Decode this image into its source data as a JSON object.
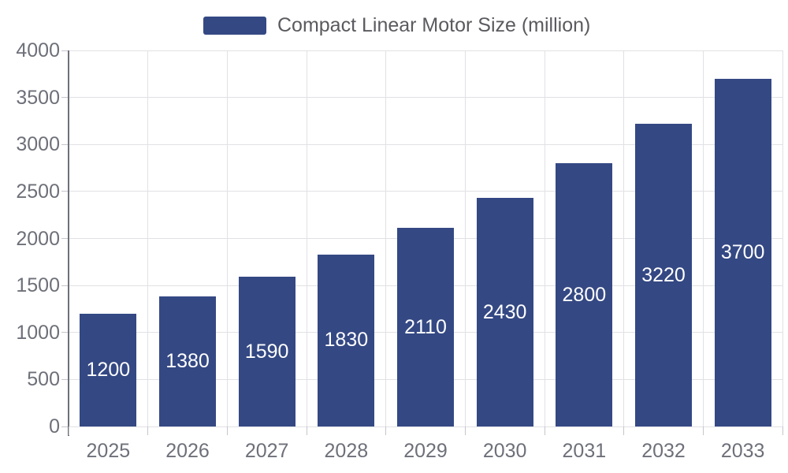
{
  "legend": {
    "series_label": "Compact Linear Motor Size (million)"
  },
  "chart_data": {
    "type": "bar",
    "title": "Compact Linear Motor Size (million)",
    "categories": [
      "2025",
      "2026",
      "2027",
      "2028",
      "2029",
      "2030",
      "2031",
      "2032",
      "2033"
    ],
    "values": [
      1200,
      1380,
      1590,
      1830,
      2110,
      2430,
      2800,
      3220,
      3700
    ],
    "series": [
      {
        "name": "Compact Linear Motor Size (million)",
        "values": [
          1200,
          1380,
          1590,
          1830,
          2110,
          2430,
          2800,
          3220,
          3700
        ]
      }
    ],
    "xlabel": "",
    "ylabel": "",
    "ylim": [
      0,
      4000
    ],
    "yticks": [
      0,
      500,
      1000,
      1500,
      2000,
      2500,
      3000,
      3500,
      4000
    ],
    "grid": true,
    "legend_position": "top-center",
    "bar_label_position": "inside-center",
    "colors": {
      "bar": "#344883",
      "bar_label": "#ffffff",
      "axis_line": "#6E7079",
      "axis_label": "#6E7079",
      "legend_text": "#5A5A5F",
      "gridline": "#E1E1E6",
      "tick": "#C6C6CC"
    }
  }
}
